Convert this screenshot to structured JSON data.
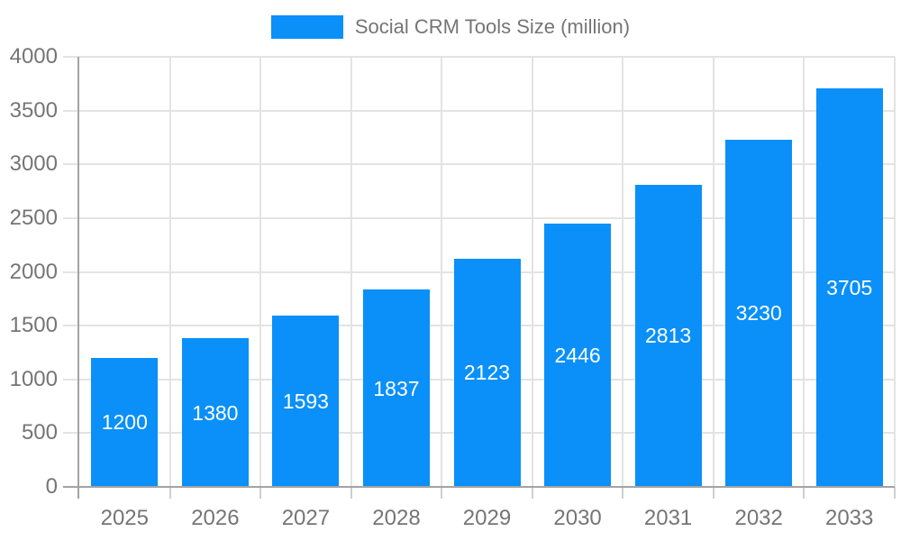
{
  "legend": {
    "label": "Social CRM Tools Size (million)"
  },
  "chart_data": {
    "type": "bar",
    "title": "Social CRM Tools Size (million)",
    "series_name": "Social CRM Tools Size (million)",
    "categories": [
      "2025",
      "2026",
      "2027",
      "2028",
      "2029",
      "2030",
      "2031",
      "2032",
      "2033"
    ],
    "values": [
      1200,
      1380,
      1593,
      1837,
      2123,
      2446,
      2813,
      3230,
      3705
    ],
    "bar_value_labels": [
      "1200",
      "1380",
      "1593",
      "1837",
      "2123",
      "2446",
      "2813",
      "3230",
      "3705"
    ],
    "xlabel": "",
    "ylabel": "",
    "ylim": [
      0,
      4000
    ],
    "ytick_step": 500,
    "yticks": [
      0,
      500,
      1000,
      1500,
      2000,
      2500,
      3000,
      3500,
      4000
    ],
    "grid": true,
    "legend_position": "top",
    "value_labels_inside_bars": true,
    "colors": {
      "bar": "#0a90f8",
      "bar_value_text": "#ffffff",
      "axis_text": "#757575",
      "grid_line": "#e3e3e3",
      "axis_line": "#a3a3a3",
      "tick_line": "#cfcfcf",
      "background": "#ffffff"
    }
  }
}
